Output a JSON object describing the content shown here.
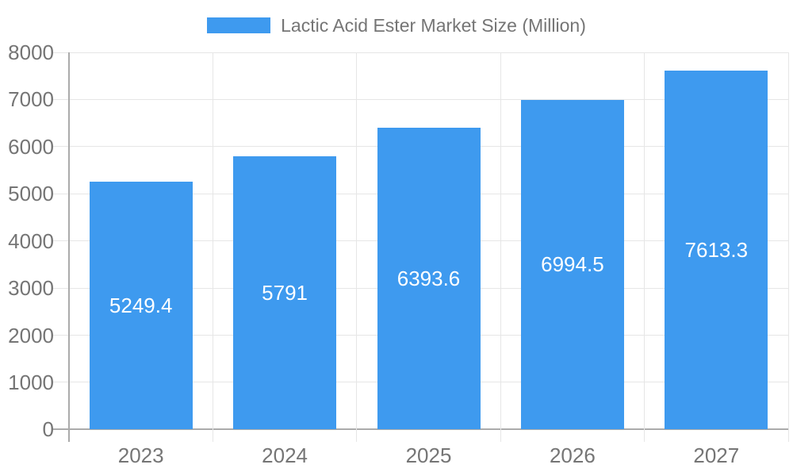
{
  "chart_data": {
    "type": "bar",
    "title": "Lactic Acid Ester Market Size (Million)",
    "categories": [
      "2023",
      "2024",
      "2025",
      "2026",
      "2027"
    ],
    "values": [
      5249.4,
      5791,
      6393.6,
      6994.5,
      7613.3
    ],
    "value_labels": [
      "5249.4",
      "5791",
      "6393.6",
      "6994.5",
      "7613.3"
    ],
    "series_name": "Lactic Acid Ester Market Size (Million)",
    "xlabel": "",
    "ylabel": "",
    "ylim": [
      0,
      8000
    ],
    "yticks": [
      0,
      1000,
      2000,
      3000,
      4000,
      5000,
      6000,
      7000,
      8000
    ],
    "grid": true,
    "legend_position": "top",
    "colors": {
      "bar": "#3E9AEF",
      "value_label": "#FFFFFF",
      "axis_text": "#757575",
      "gridline": "#E6E6E6",
      "axis_line": "#ABABAB",
      "background": "#FFFFFF"
    }
  }
}
